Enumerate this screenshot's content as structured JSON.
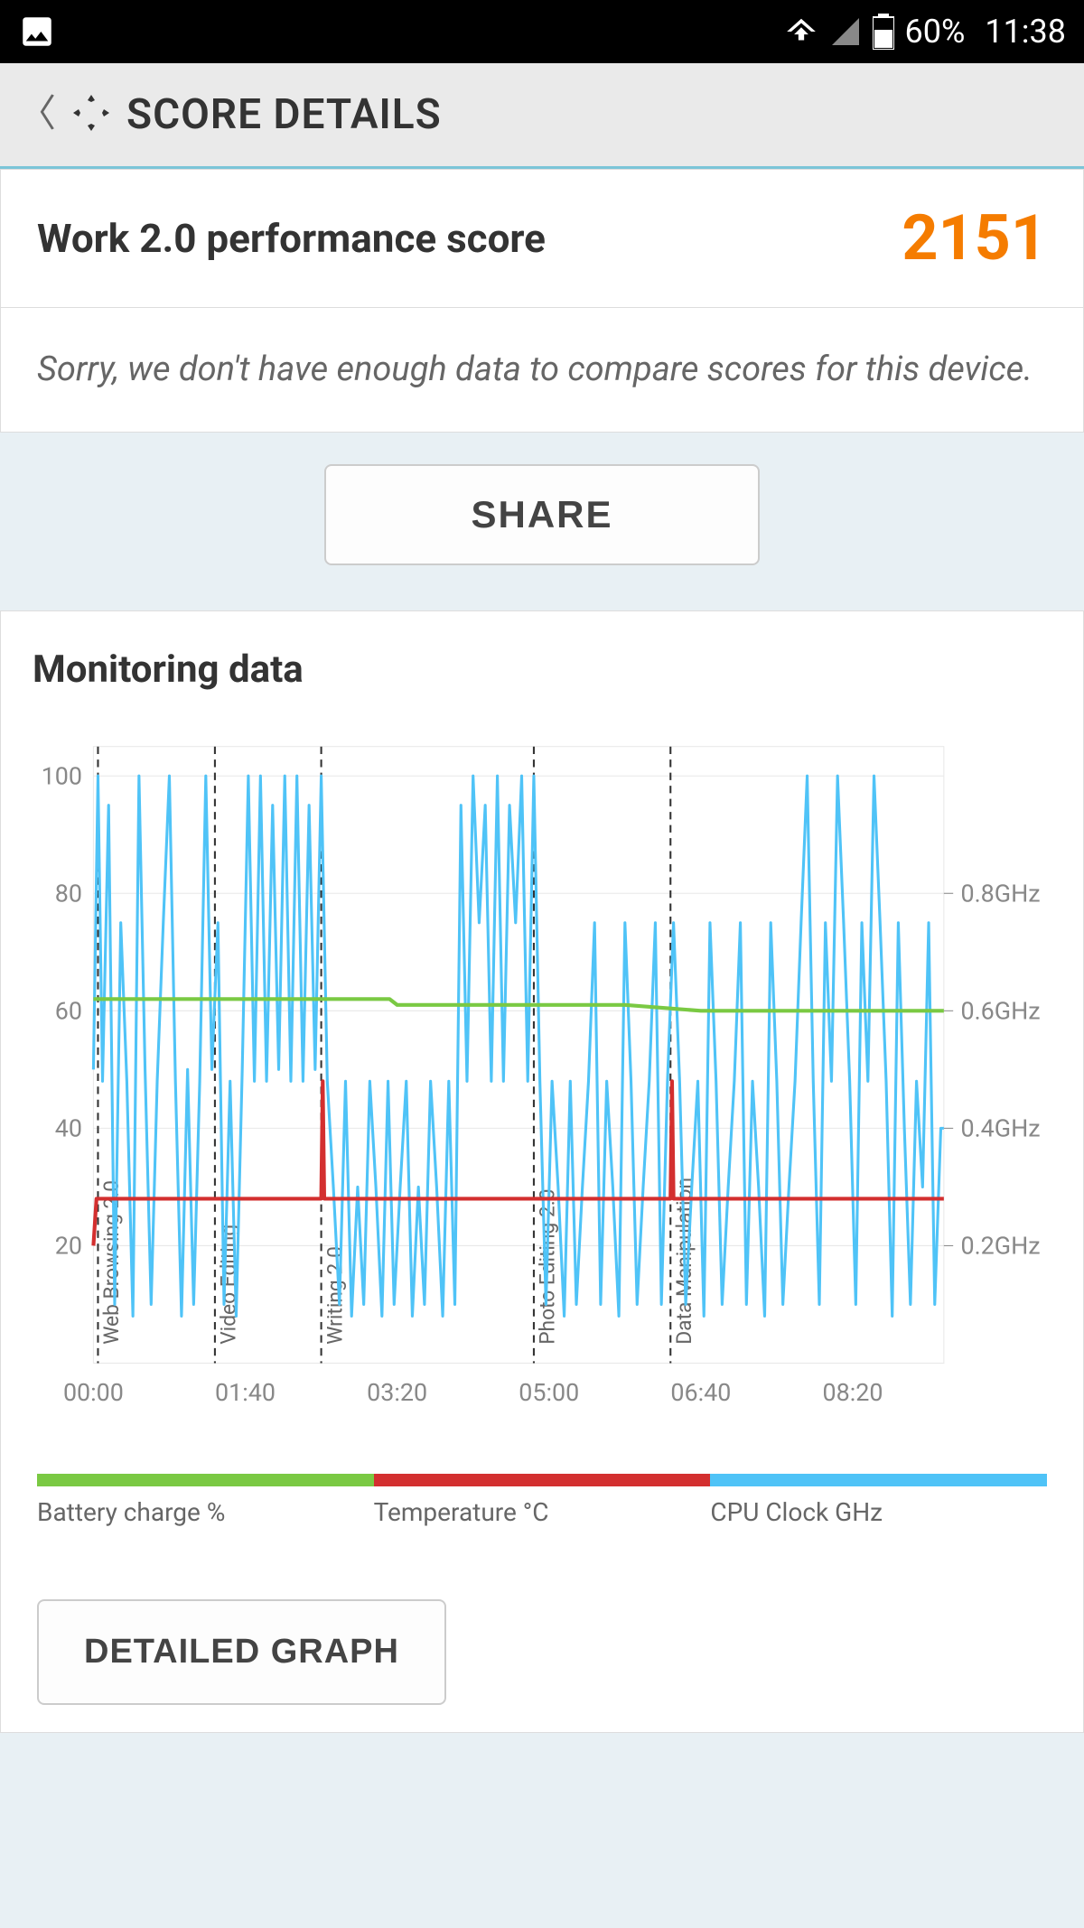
{
  "status_bar": {
    "battery_pct": "60%",
    "time": "11:38",
    "bg_color": "#000000",
    "fg_color": "#ffffff"
  },
  "header": {
    "title": "SCORE DETAILS",
    "bg_color": "#eaeaea",
    "accent_color": "#7bc5d8"
  },
  "score": {
    "label": "Work 2.0 performance score",
    "value": "2151",
    "value_color": "#f57c00",
    "info_text": "Sorry, we don't have enough data to compare scores for this device."
  },
  "buttons": {
    "share": "SHARE",
    "detailed": "DETAILED GRAPH"
  },
  "monitoring": {
    "title": "Monitoring data",
    "chart": {
      "type": "line",
      "background_color": "#ffffff",
      "grid_color": "#e8e8e8",
      "left_axis": {
        "ylim": [
          0,
          100
        ],
        "ticks": [
          20,
          40,
          60,
          80,
          100
        ],
        "tick_labels": [
          "20",
          "40",
          "60",
          "80",
          "100"
        ]
      },
      "right_axis": {
        "ticks": [
          20,
          40,
          60,
          80
        ],
        "tick_labels": [
          "0.2GHz",
          "0.4GHz",
          "0.6GHz",
          "0.8GHz"
        ]
      },
      "x_axis": {
        "ticks": [
          0,
          100,
          200,
          300,
          400,
          500
        ],
        "tick_labels": [
          "00:00",
          "01:40",
          "03:20",
          "05:00",
          "06:40",
          "08:20"
        ]
      },
      "phase_markers": [
        {
          "x": 3,
          "label": "Web Browsing 2.0"
        },
        {
          "x": 80,
          "label": "Video Editing"
        },
        {
          "x": 150,
          "label": "Writing 2.0"
        },
        {
          "x": 290,
          "label": "Photo Editing 2.0"
        },
        {
          "x": 380,
          "label": "Data Manipulation"
        }
      ],
      "series": {
        "battery": {
          "color": "#7ac943",
          "stroke_width": 4,
          "points": [
            [
              0,
              62
            ],
            [
              50,
              62
            ],
            [
              100,
              62
            ],
            [
              150,
              62
            ],
            [
              195,
              62
            ],
            [
              200,
              61
            ],
            [
              250,
              61
            ],
            [
              300,
              61
            ],
            [
              350,
              61
            ],
            [
              400,
              60
            ],
            [
              450,
              60
            ],
            [
              500,
              60
            ],
            [
              560,
              60
            ]
          ]
        },
        "temperature": {
          "color": "#d32f2f",
          "stroke_width": 4,
          "points": [
            [
              0,
              20
            ],
            [
              2,
              28
            ],
            [
              150,
              28
            ],
            [
              151,
              48
            ],
            [
              152,
              28
            ],
            [
              380,
              28
            ],
            [
              381,
              48
            ],
            [
              382,
              28
            ],
            [
              560,
              28
            ]
          ]
        },
        "cpu": {
          "color": "#4fc3f7",
          "stroke_width": 3,
          "points": [
            [
              0,
              50
            ],
            [
              3,
              100
            ],
            [
              6,
              48
            ],
            [
              10,
              95
            ],
            [
              14,
              10
            ],
            [
              18,
              75
            ],
            [
              22,
              48
            ],
            [
              26,
              8
            ],
            [
              30,
              100
            ],
            [
              34,
              50
            ],
            [
              38,
              10
            ],
            [
              42,
              48
            ],
            [
              46,
              75
            ],
            [
              50,
              100
            ],
            [
              54,
              48
            ],
            [
              58,
              8
            ],
            [
              62,
              50
            ],
            [
              66,
              10
            ],
            [
              70,
              48
            ],
            [
              74,
              100
            ],
            [
              78,
              50
            ],
            [
              82,
              75
            ],
            [
              86,
              10
            ],
            [
              90,
              48
            ],
            [
              94,
              8
            ],
            [
              98,
              50
            ],
            [
              102,
              100
            ],
            [
              106,
              48
            ],
            [
              110,
              100
            ],
            [
              114,
              48
            ],
            [
              118,
              95
            ],
            [
              122,
              50
            ],
            [
              126,
              100
            ],
            [
              130,
              48
            ],
            [
              134,
              100
            ],
            [
              138,
              48
            ],
            [
              142,
              95
            ],
            [
              146,
              50
            ],
            [
              150,
              100
            ],
            [
              154,
              48
            ],
            [
              158,
              30
            ],
            [
              162,
              10
            ],
            [
              166,
              48
            ],
            [
              170,
              8
            ],
            [
              174,
              30
            ],
            [
              178,
              10
            ],
            [
              182,
              48
            ],
            [
              186,
              30
            ],
            [
              190,
              8
            ],
            [
              194,
              48
            ],
            [
              198,
              10
            ],
            [
              202,
              30
            ],
            [
              206,
              48
            ],
            [
              210,
              8
            ],
            [
              214,
              30
            ],
            [
              218,
              10
            ],
            [
              222,
              48
            ],
            [
              226,
              30
            ],
            [
              230,
              8
            ],
            [
              234,
              48
            ],
            [
              238,
              10
            ],
            [
              242,
              95
            ],
            [
              246,
              48
            ],
            [
              250,
              100
            ],
            [
              254,
              75
            ],
            [
              258,
              95
            ],
            [
              262,
              48
            ],
            [
              266,
              100
            ],
            [
              270,
              48
            ],
            [
              274,
              95
            ],
            [
              278,
              75
            ],
            [
              282,
              100
            ],
            [
              286,
              48
            ],
            [
              290,
              100
            ],
            [
              294,
              48
            ],
            [
              298,
              10
            ],
            [
              302,
              48
            ],
            [
              306,
              30
            ],
            [
              310,
              8
            ],
            [
              314,
              48
            ],
            [
              318,
              10
            ],
            [
              322,
              30
            ],
            [
              326,
              48
            ],
            [
              330,
              75
            ],
            [
              334,
              10
            ],
            [
              338,
              48
            ],
            [
              342,
              30
            ],
            [
              346,
              8
            ],
            [
              350,
              75
            ],
            [
              354,
              48
            ],
            [
              358,
              10
            ],
            [
              362,
              30
            ],
            [
              366,
              48
            ],
            [
              370,
              75
            ],
            [
              374,
              10
            ],
            [
              378,
              48
            ],
            [
              382,
              75
            ],
            [
              386,
              48
            ],
            [
              390,
              10
            ],
            [
              394,
              30
            ],
            [
              398,
              48
            ],
            [
              402,
              8
            ],
            [
              406,
              75
            ],
            [
              410,
              48
            ],
            [
              414,
              10
            ],
            [
              418,
              30
            ],
            [
              422,
              48
            ],
            [
              426,
              75
            ],
            [
              430,
              10
            ],
            [
              434,
              48
            ],
            [
              438,
              30
            ],
            [
              442,
              8
            ],
            [
              446,
              75
            ],
            [
              450,
              48
            ],
            [
              454,
              10
            ],
            [
              458,
              30
            ],
            [
              462,
              48
            ],
            [
              466,
              75
            ],
            [
              470,
              100
            ],
            [
              474,
              48
            ],
            [
              478,
              10
            ],
            [
              482,
              75
            ],
            [
              486,
              48
            ],
            [
              490,
              100
            ],
            [
              494,
              75
            ],
            [
              498,
              48
            ],
            [
              502,
              10
            ],
            [
              506,
              75
            ],
            [
              510,
              48
            ],
            [
              514,
              100
            ],
            [
              518,
              75
            ],
            [
              522,
              48
            ],
            [
              526,
              8
            ],
            [
              530,
              75
            ],
            [
              534,
              40
            ],
            [
              538,
              10
            ],
            [
              542,
              48
            ],
            [
              546,
              30
            ],
            [
              550,
              75
            ],
            [
              554,
              10
            ],
            [
              558,
              40
            ],
            [
              560,
              40
            ]
          ]
        }
      },
      "legend": [
        {
          "color": "#7ac943",
          "label": "Battery charge %"
        },
        {
          "color": "#d32f2f",
          "label": "Temperature °C"
        },
        {
          "color": "#4fc3f7",
          "label": "CPU Clock GHz"
        }
      ]
    }
  }
}
